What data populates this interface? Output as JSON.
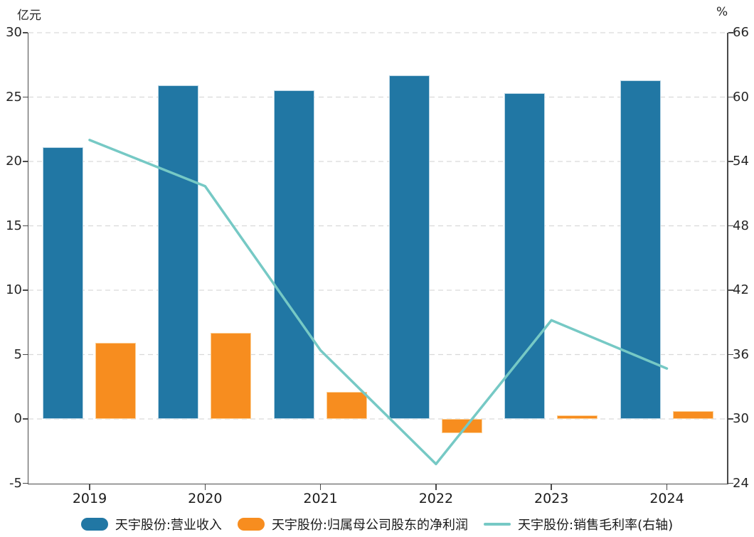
{
  "chart_data": {
    "type": "combo",
    "title": "",
    "categories": [
      "2019",
      "2020",
      "2021",
      "2022",
      "2023",
      "2024"
    ],
    "series": [
      {
        "name": "天宇股份:营业收入",
        "type": "bar",
        "axis": "left",
        "color": "#2177a4",
        "edge_color": "#b9d5e4",
        "values": [
          21.1,
          25.9,
          25.5,
          26.7,
          25.3,
          26.3
        ]
      },
      {
        "name": "天宇股份:归属母公司股东的净利润",
        "type": "bar",
        "axis": "left",
        "color": "#f78d1f",
        "edge_color": "#fccf95",
        "values": [
          5.9,
          6.7,
          2.1,
          -1.1,
          0.3,
          0.6
        ]
      },
      {
        "name": "天宇股份:销售毛利率(右轴)",
        "type": "line",
        "axis": "right",
        "color": "#76c9c5",
        "values": [
          56.0,
          51.7,
          36.4,
          25.8,
          39.2,
          34.7
        ]
      }
    ],
    "left_axis": {
      "label": "亿元",
      "min": -5,
      "max": 30,
      "ticks": [
        30,
        25,
        20,
        15,
        10,
        5,
        0,
        -5
      ]
    },
    "right_axis": {
      "label": "%",
      "min": 24,
      "max": 66,
      "ticks": [
        66,
        60,
        54,
        48,
        42,
        36,
        30,
        24
      ]
    },
    "grid": {
      "show": true,
      "style": "dashed",
      "color": "#d9d9d9"
    },
    "axis_color": "#4a4a4a",
    "legend_position": "bottom"
  }
}
